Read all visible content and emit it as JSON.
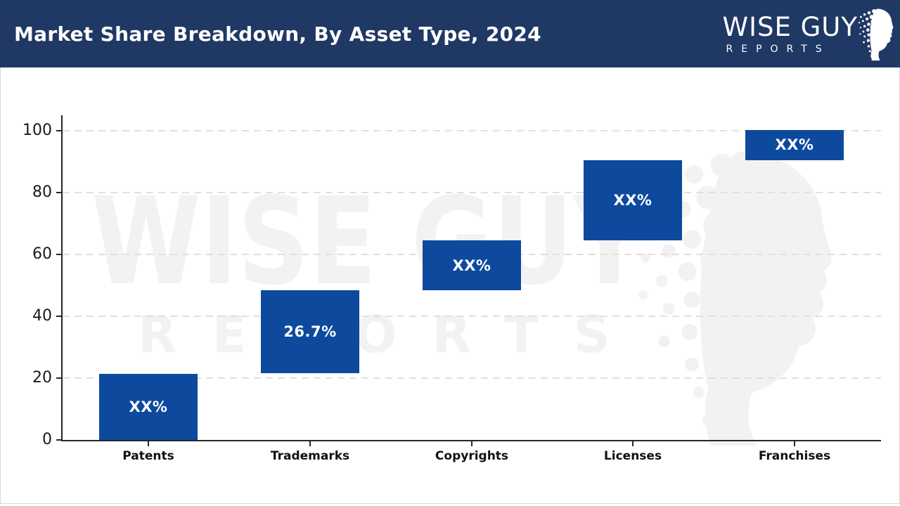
{
  "header": {
    "title": "Market Share Breakdown, By Asset Type, 2024",
    "logo": {
      "name": "WISE GUY",
      "subtitle": "REPORTS"
    }
  },
  "watermark": {
    "name": "WISE GUY",
    "subtitle": "REPORTS"
  },
  "colors": {
    "header_bg": "#1f3864",
    "bar": "#0d4a9e",
    "grid": "#e0e0e0",
    "axis": "#262626",
    "tick_text": "#1a1a1a",
    "bar_label_text": "#ffffff",
    "watermark": "#f2f2f2"
  },
  "chart_data": {
    "type": "bar",
    "variant": "waterfall-floating-bars",
    "title": "Market Share Breakdown, By Asset Type, 2024",
    "categories": [
      "Patents",
      "Trademarks",
      "Copyrights",
      "Licenses",
      "Franchises"
    ],
    "segments": [
      {
        "category": "Patents",
        "start": 0,
        "end": 21.4,
        "label": "XX%"
      },
      {
        "category": "Trademarks",
        "start": 21.6,
        "end": 48.3,
        "label": "26.7%"
      },
      {
        "category": "Copyrights",
        "start": 48.3,
        "end": 64.6,
        "label": "XX%"
      },
      {
        "category": "Licenses",
        "start": 64.6,
        "end": 90.5,
        "label": "XX%"
      },
      {
        "category": "Franchises",
        "start": 90.5,
        "end": 100.2,
        "label": "XX%"
      }
    ],
    "yticks": [
      0,
      20,
      40,
      60,
      80,
      100
    ],
    "ylim": [
      0,
      105
    ],
    "xlabel": "",
    "ylabel": "",
    "grid": "horizontal-dashed",
    "legend": "none"
  }
}
